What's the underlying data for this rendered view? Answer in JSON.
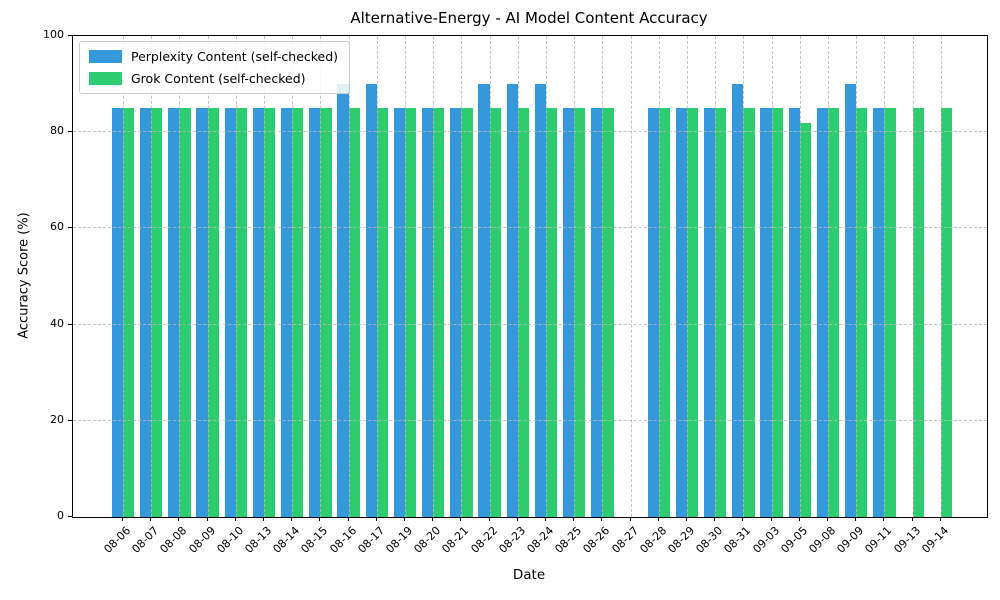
{
  "chart_data": {
    "type": "bar",
    "title": "Alternative-Energy - AI Model Content Accuracy",
    "xlabel": "Date",
    "ylabel": "Accuracy Score (%)",
    "ylim": [
      0,
      100
    ],
    "yticks": [
      0,
      20,
      40,
      60,
      80,
      100
    ],
    "grid": true,
    "grid_style": "dashed",
    "legend_position": "upper left",
    "categories": [
      "08-06",
      "08-07",
      "08-08",
      "08-09",
      "08-10",
      "08-13",
      "08-14",
      "08-15",
      "08-16",
      "08-17",
      "08-19",
      "08-20",
      "08-21",
      "08-22",
      "08-23",
      "08-24",
      "08-25",
      "08-26",
      "08-27",
      "08-28",
      "08-29",
      "08-30",
      "08-31",
      "09-03",
      "09-05",
      "09-08",
      "09-09",
      "09-11",
      "09-13",
      "09-14"
    ],
    "series": [
      {
        "name": "Perplexity Content (self-checked)",
        "color": "#3498db",
        "values": [
          85,
          85,
          85,
          85,
          85,
          85,
          85,
          85,
          90,
          90,
          85,
          85,
          85,
          90,
          90,
          90,
          85,
          85,
          null,
          85,
          85,
          85,
          90,
          85,
          85,
          85,
          90,
          85,
          null,
          null
        ]
      },
      {
        "name": "Grok Content (self-checked)",
        "color": "#2ecc71",
        "values": [
          85,
          85,
          85,
          85,
          85,
          85,
          85,
          85,
          85,
          85,
          85,
          85,
          85,
          85,
          85,
          85,
          85,
          85,
          null,
          85,
          85,
          85,
          85,
          85,
          82,
          85,
          85,
          85,
          85,
          85
        ]
      }
    ]
  }
}
